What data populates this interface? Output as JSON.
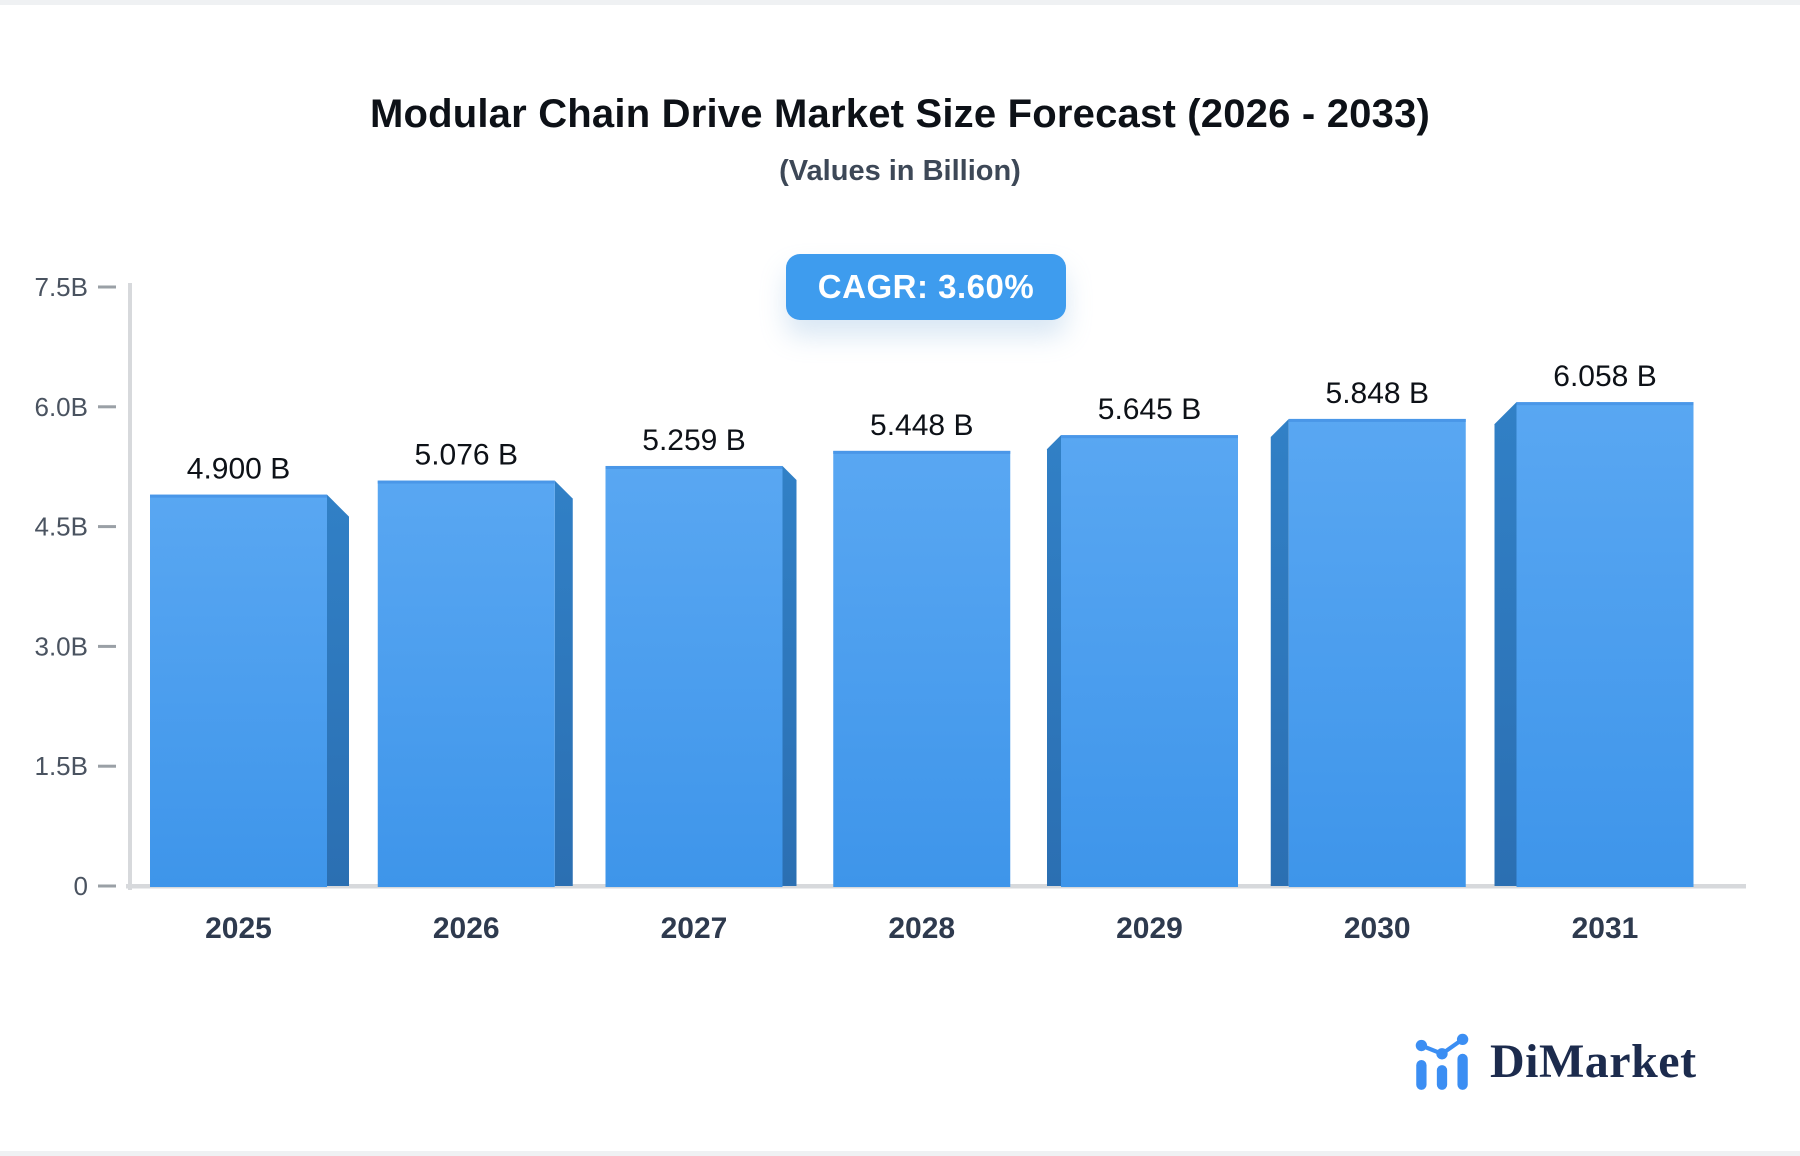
{
  "page": {
    "title": "Modular Chain Drive Market Size Forecast (2026 - 2033)",
    "subtitle": "(Values in Billion)",
    "cagr_badge": "CAGR: 3.60%"
  },
  "brand": {
    "name": "DiMarket",
    "icon": "bar-line-chart-icon"
  },
  "colors": {
    "title": "#0d1117",
    "subtitle": "#3d4857",
    "badge_bg": "#3e9cee",
    "badge_text": "#ffffff",
    "bar_front_top": "#59a7f2",
    "bar_front_bottom": "#3e95ea",
    "bar_top_edge": "#4a97e8",
    "bar_side_top": "#3180c6",
    "bar_side_bottom": "#2b6fb2",
    "axis_line": "#d7d9dc",
    "tick": "#9aa0a6",
    "y_label": "#4a5360",
    "x_label": "#2e3a4e",
    "value_label": "#0d1117",
    "brand_text": "#1c2b4d",
    "brand_icon": "#3b8ef3"
  },
  "chart_data": {
    "type": "bar",
    "title": "Modular Chain Drive Market Size Forecast (2026 - 2033)",
    "subtitle": "(Values in Billion)",
    "annotation": "CAGR: 3.60%",
    "categories": [
      "2025",
      "2026",
      "2027",
      "2028",
      "2029",
      "2030",
      "2031"
    ],
    "values": [
      4.9,
      5.076,
      5.259,
      5.448,
      5.645,
      5.848,
      6.058
    ],
    "value_labels": [
      "4.900 B",
      "5.076 B",
      "5.259 B",
      "5.448 B",
      "5.645 B",
      "5.848 B",
      "6.058 B"
    ],
    "xlabel": "",
    "ylabel": "",
    "ylim": [
      0,
      7.5
    ],
    "yticks": [
      0,
      1.5,
      3.0,
      4.5,
      6.0,
      7.5
    ],
    "ytick_labels": [
      "0",
      "1.5B",
      "3.0B",
      "4.5B",
      "6.0B",
      "7.5B"
    ],
    "grid": false,
    "legend": false,
    "bar_style": "3d-perspective-extrusion"
  }
}
